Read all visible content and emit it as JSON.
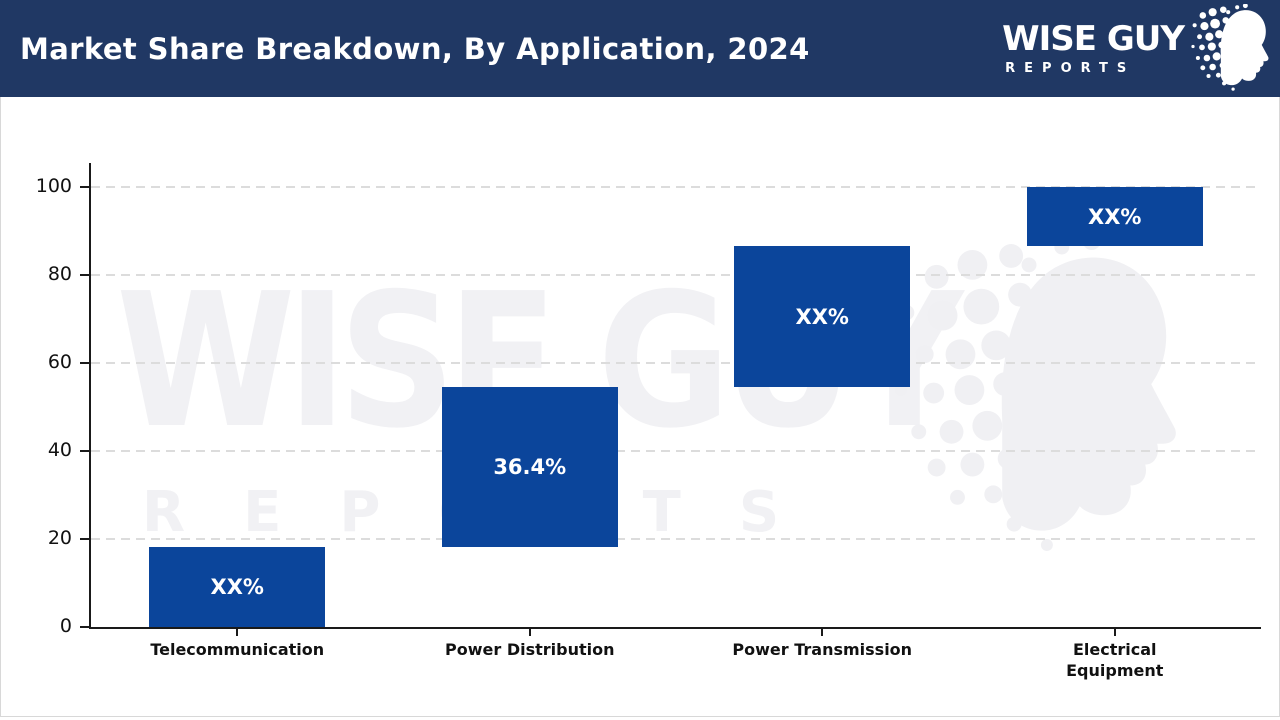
{
  "header": {
    "title": "Market Share Breakdown, By Application, 2024",
    "logo": {
      "line1": "WISE GUY",
      "line2": "REPORTS"
    }
  },
  "watermark": {
    "line1": "WISE GUY",
    "line2": "REPORTS"
  },
  "chart_data": {
    "type": "bar",
    "variant": "waterfall",
    "title": "Market Share Breakdown, By Application, 2024",
    "categories": [
      "Telecommunication",
      "Power Distribution",
      "Power Transmission",
      "Electrical Equipment"
    ],
    "bars": [
      {
        "category": "Telecommunication",
        "tick_lines": [
          "Telecommunication"
        ],
        "start": 0,
        "end": 18.2,
        "value": 18.2,
        "label": "XX%"
      },
      {
        "category": "Power Distribution",
        "tick_lines": [
          "Power Distribution"
        ],
        "start": 18.2,
        "end": 54.6,
        "value": 36.4,
        "label": "36.4%"
      },
      {
        "category": "Power Transmission",
        "tick_lines": [
          "Power Transmission"
        ],
        "start": 54.6,
        "end": 86.5,
        "value": 31.9,
        "label": "XX%"
      },
      {
        "category": "Electrical Equipment",
        "tick_lines": [
          "Electrical",
          "Equipment"
        ],
        "start": 86.5,
        "end": 100,
        "value": 13.5,
        "label": "XX%"
      }
    ],
    "xlabel": "",
    "ylabel": "",
    "yticks": [
      0,
      20,
      40,
      60,
      80,
      100
    ],
    "ylim": [
      0,
      105.5
    ],
    "grid": "horizontal-dashed",
    "legend": "none",
    "colors": {
      "bar": "#0b459b",
      "bar_label": "#ffffff",
      "header_bg": "#203864",
      "grid_line": "#dcdcdc",
      "axis": "#1a1a1a",
      "watermark": "#f1f1f4"
    }
  }
}
